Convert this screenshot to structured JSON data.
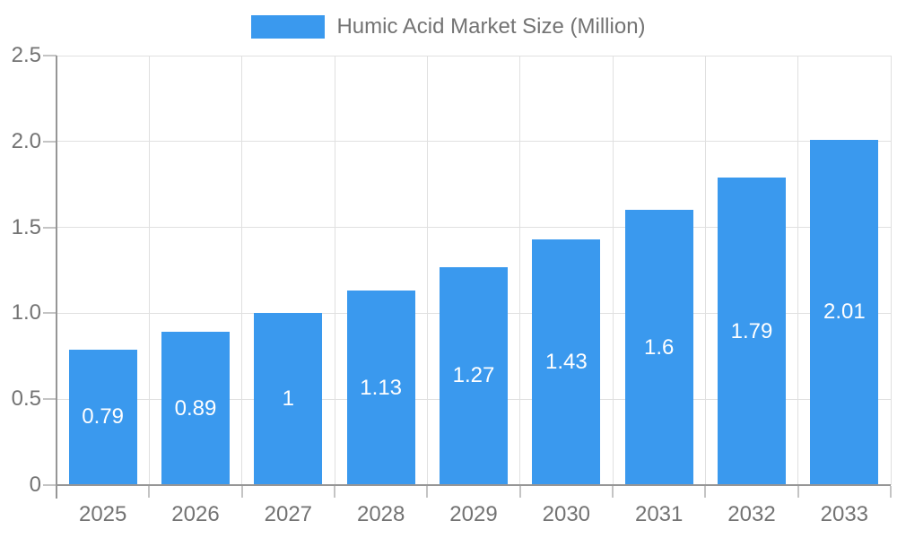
{
  "chart_data": {
    "type": "bar",
    "title": "Humic Acid Market Size (Million)",
    "legend": {
      "label": "Humic Acid Market Size (Million)",
      "position": "top"
    },
    "categories": [
      "2025",
      "2026",
      "2027",
      "2028",
      "2029",
      "2030",
      "2031",
      "2032",
      "2033"
    ],
    "series": [
      {
        "name": "Humic Acid Market Size (Million)",
        "values": [
          0.79,
          0.89,
          1,
          1.13,
          1.27,
          1.43,
          1.6,
          1.79,
          2.01
        ],
        "value_labels": [
          "0.79",
          "0.89",
          "1",
          "1.13",
          "1.27",
          "1.43",
          "1.6",
          "1.79",
          "2.01"
        ]
      }
    ],
    "xlabel": "",
    "ylabel": "",
    "ylim": [
      0,
      2.5
    ],
    "yticks": {
      "values": [
        0,
        0.5,
        1,
        1.5,
        2,
        2.5
      ],
      "labels": [
        "0",
        "0.5",
        "1.0",
        "1.5",
        "2.0",
        "2.5"
      ]
    },
    "grid": true,
    "colors": {
      "bar": "#3A99EE",
      "bar_label_text": "#FFFFFF",
      "axis_line": "#969696",
      "gridline": "#E0E0E0",
      "tick": "#C4C4C4",
      "axis_text": "#737373",
      "legend_text": "#737373",
      "background": "#FFFFFF"
    }
  }
}
